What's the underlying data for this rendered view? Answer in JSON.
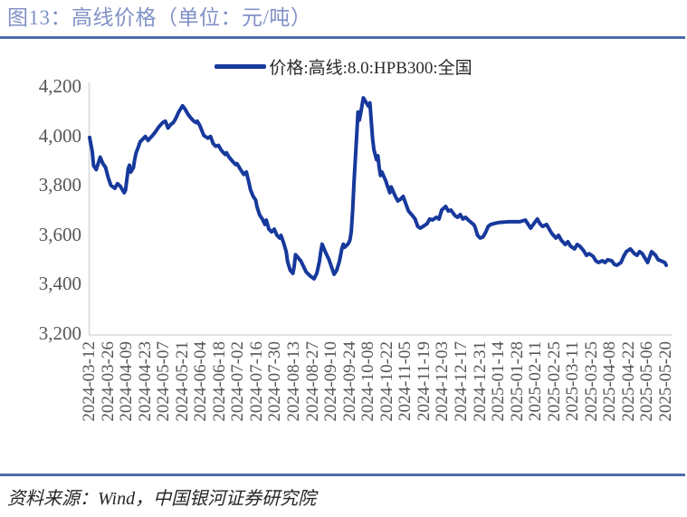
{
  "header": {
    "title": "图13：高线价格（单位：元/吨）"
  },
  "footer": {
    "source": "资料来源：Wind，中国银河证券研究院"
  },
  "colors": {
    "line": "#17399c",
    "title_text": "#8091c7",
    "divider": "#4d6aa8",
    "axis_text": "#555555",
    "legend_text": "#2b2b2b",
    "source_text": "#262626",
    "spine": "#d9d9d9"
  },
  "chart_data": {
    "type": "line",
    "title": "高线价格（单位：元/吨）",
    "xlabel": "",
    "ylabel": "",
    "grid": false,
    "legend_position": "top-center",
    "legend": [
      "价格:高线:8.0:HPB300:全国"
    ],
    "ylim": [
      3200,
      4200
    ],
    "x_range": [
      "2024-03-12",
      "2025-05-20"
    ],
    "y_ticks": [
      {
        "value": 4200,
        "label": "4,200"
      },
      {
        "value": 4000,
        "label": "4,000"
      },
      {
        "value": 3800,
        "label": "3,800"
      },
      {
        "value": 3600,
        "label": "3,600"
      },
      {
        "value": 3400,
        "label": "3,400"
      },
      {
        "value": 3200,
        "label": "3,200"
      }
    ],
    "x_ticks": [
      "2024-03-12",
      "2024-03-26",
      "2024-04-09",
      "2024-04-23",
      "2024-05-07",
      "2024-05-21",
      "2024-06-04",
      "2024-06-18",
      "2024-07-02",
      "2024-07-16",
      "2024-07-30",
      "2024-08-13",
      "2024-08-27",
      "2024-09-10",
      "2024-09-24",
      "2024-10-08",
      "2024-10-22",
      "2024-11-05",
      "2024-11-19",
      "2024-12-03",
      "2024-12-17",
      "2024-12-31",
      "2025-01-14",
      "2025-01-28",
      "2025-02-11",
      "2025-02-25",
      "2025-03-11",
      "2025-03-25",
      "2025-04-08",
      "2025-04-22",
      "2025-05-06",
      "2025-05-20"
    ],
    "series": [
      {
        "name": "价格:高线:8.0:HPB300:全国",
        "points": [
          [
            "2024-03-12",
            3992
          ],
          [
            "2024-03-14",
            3935
          ],
          [
            "2024-03-15",
            3878
          ],
          [
            "2024-03-17",
            3862
          ],
          [
            "2024-03-19",
            3896
          ],
          [
            "2024-03-20",
            3912
          ],
          [
            "2024-03-22",
            3886
          ],
          [
            "2024-03-24",
            3871
          ],
          [
            "2024-03-26",
            3830
          ],
          [
            "2024-03-28",
            3798
          ],
          [
            "2024-03-31",
            3786
          ],
          [
            "2024-04-02",
            3805
          ],
          [
            "2024-04-04",
            3795
          ],
          [
            "2024-04-07",
            3768
          ],
          [
            "2024-04-08",
            3778
          ],
          [
            "2024-04-09",
            3820
          ],
          [
            "2024-04-10",
            3865
          ],
          [
            "2024-04-11",
            3880
          ],
          [
            "2024-04-12",
            3852
          ],
          [
            "2024-04-14",
            3870
          ],
          [
            "2024-04-15",
            3905
          ],
          [
            "2024-04-16",
            3930
          ],
          [
            "2024-04-18",
            3958
          ],
          [
            "2024-04-19",
            3974
          ],
          [
            "2024-04-21",
            3985
          ],
          [
            "2024-04-23",
            3996
          ],
          [
            "2024-04-25",
            3980
          ],
          [
            "2024-04-27",
            3992
          ],
          [
            "2024-04-29",
            4004
          ],
          [
            "2024-05-01",
            4018
          ],
          [
            "2024-05-03",
            4034
          ],
          [
            "2024-05-06",
            4052
          ],
          [
            "2024-05-08",
            4058
          ],
          [
            "2024-05-10",
            4030
          ],
          [
            "2024-05-12",
            4044
          ],
          [
            "2024-05-14",
            4052
          ],
          [
            "2024-05-16",
            4070
          ],
          [
            "2024-05-18",
            4094
          ],
          [
            "2024-05-20",
            4112
          ],
          [
            "2024-05-21",
            4120
          ],
          [
            "2024-05-23",
            4105
          ],
          [
            "2024-05-25",
            4086
          ],
          [
            "2024-05-27",
            4072
          ],
          [
            "2024-05-29",
            4060
          ],
          [
            "2024-05-31",
            4052
          ],
          [
            "2024-06-01",
            4058
          ],
          [
            "2024-06-03",
            4040
          ],
          [
            "2024-06-04",
            4026
          ],
          [
            "2024-06-06",
            4000
          ],
          [
            "2024-06-09",
            3989
          ],
          [
            "2024-06-11",
            3996
          ],
          [
            "2024-06-13",
            3967
          ],
          [
            "2024-06-15",
            3956
          ],
          [
            "2024-06-17",
            3960
          ],
          [
            "2024-06-19",
            3941
          ],
          [
            "2024-06-22",
            3923
          ],
          [
            "2024-06-23",
            3930
          ],
          [
            "2024-06-25",
            3912
          ],
          [
            "2024-06-28",
            3893
          ],
          [
            "2024-06-30",
            3882
          ],
          [
            "2024-07-01",
            3886
          ],
          [
            "2024-07-03",
            3867
          ],
          [
            "2024-07-06",
            3842
          ],
          [
            "2024-07-08",
            3852
          ],
          [
            "2024-07-10",
            3808
          ],
          [
            "2024-07-11",
            3782
          ],
          [
            "2024-07-13",
            3755
          ],
          [
            "2024-07-15",
            3738
          ],
          [
            "2024-07-16",
            3712
          ],
          [
            "2024-07-18",
            3678
          ],
          [
            "2024-07-20",
            3662
          ],
          [
            "2024-07-22",
            3640
          ],
          [
            "2024-07-23",
            3658
          ],
          [
            "2024-07-25",
            3621
          ],
          [
            "2024-07-27",
            3610
          ],
          [
            "2024-07-29",
            3621
          ],
          [
            "2024-07-31",
            3596
          ],
          [
            "2024-08-02",
            3585
          ],
          [
            "2024-08-03",
            3596
          ],
          [
            "2024-08-05",
            3566
          ],
          [
            "2024-08-07",
            3530
          ],
          [
            "2024-08-08",
            3490
          ],
          [
            "2024-08-10",
            3455
          ],
          [
            "2024-08-12",
            3442
          ],
          [
            "2024-08-13",
            3470
          ],
          [
            "2024-08-14",
            3518
          ],
          [
            "2024-08-16",
            3505
          ],
          [
            "2024-08-18",
            3492
          ],
          [
            "2024-08-20",
            3470
          ],
          [
            "2024-08-22",
            3448
          ],
          [
            "2024-08-25",
            3432
          ],
          [
            "2024-08-28",
            3420
          ],
          [
            "2024-08-30",
            3442
          ],
          [
            "2024-09-01",
            3490
          ],
          [
            "2024-09-02",
            3530
          ],
          [
            "2024-09-03",
            3560
          ],
          [
            "2024-09-04",
            3548
          ],
          [
            "2024-09-06",
            3522
          ],
          [
            "2024-09-08",
            3500
          ],
          [
            "2024-09-10",
            3470
          ],
          [
            "2024-09-12",
            3438
          ],
          [
            "2024-09-14",
            3455
          ],
          [
            "2024-09-16",
            3490
          ],
          [
            "2024-09-18",
            3545
          ],
          [
            "2024-09-19",
            3560
          ],
          [
            "2024-09-20",
            3548
          ],
          [
            "2024-09-22",
            3558
          ],
          [
            "2024-09-23",
            3565
          ],
          [
            "2024-09-24",
            3578
          ],
          [
            "2024-09-25",
            3612
          ],
          [
            "2024-09-26",
            3695
          ],
          [
            "2024-09-27",
            3810
          ],
          [
            "2024-09-29",
            3995
          ],
          [
            "2024-09-30",
            4095
          ],
          [
            "2024-10-01",
            4062
          ],
          [
            "2024-10-02",
            4088
          ],
          [
            "2024-10-04",
            4152
          ],
          [
            "2024-10-08",
            4118
          ],
          [
            "2024-10-09",
            4132
          ],
          [
            "2024-10-10",
            4058
          ],
          [
            "2024-10-11",
            3988
          ],
          [
            "2024-10-12",
            3942
          ],
          [
            "2024-10-14",
            3902
          ],
          [
            "2024-10-15",
            3918
          ],
          [
            "2024-10-16",
            3868
          ],
          [
            "2024-10-17",
            3838
          ],
          [
            "2024-10-18",
            3852
          ],
          [
            "2024-10-21",
            3815
          ],
          [
            "2024-10-22",
            3798
          ],
          [
            "2024-10-24",
            3768
          ],
          [
            "2024-10-25",
            3792
          ],
          [
            "2024-10-28",
            3755
          ],
          [
            "2024-10-30",
            3735
          ],
          [
            "2024-11-01",
            3742
          ],
          [
            "2024-11-03",
            3753
          ],
          [
            "2024-11-05",
            3724
          ],
          [
            "2024-11-07",
            3694
          ],
          [
            "2024-11-10",
            3676
          ],
          [
            "2024-11-12",
            3662
          ],
          [
            "2024-11-14",
            3632
          ],
          [
            "2024-11-16",
            3625
          ],
          [
            "2024-11-18",
            3632
          ],
          [
            "2024-11-21",
            3643
          ],
          [
            "2024-11-23",
            3662
          ],
          [
            "2024-11-25",
            3658
          ],
          [
            "2024-11-28",
            3669
          ],
          [
            "2024-11-30",
            3662
          ],
          [
            "2024-12-02",
            3698
          ],
          [
            "2024-12-05",
            3713
          ],
          [
            "2024-12-07",
            3694
          ],
          [
            "2024-12-09",
            3698
          ],
          [
            "2024-12-12",
            3676
          ],
          [
            "2024-12-14",
            3669
          ],
          [
            "2024-12-16",
            3680
          ],
          [
            "2024-12-18",
            3662
          ],
          [
            "2024-12-20",
            3669
          ],
          [
            "2024-12-22",
            3658
          ],
          [
            "2024-12-26",
            3640
          ],
          [
            "2024-12-27",
            3632
          ],
          [
            "2024-12-29",
            3596
          ],
          [
            "2024-12-31",
            3585
          ],
          [
            "2025-01-02",
            3589
          ],
          [
            "2025-01-04",
            3607
          ],
          [
            "2025-01-06",
            3632
          ],
          [
            "2025-01-08",
            3640
          ],
          [
            "2025-01-10",
            3643
          ],
          [
            "2025-01-14",
            3648
          ],
          [
            "2025-01-18",
            3650
          ],
          [
            "2025-01-22",
            3651
          ],
          [
            "2025-01-26",
            3651
          ],
          [
            "2025-01-30",
            3651
          ],
          [
            "2025-02-03",
            3658
          ],
          [
            "2025-02-07",
            3625
          ],
          [
            "2025-02-09",
            3640
          ],
          [
            "2025-02-12",
            3662
          ],
          [
            "2025-02-14",
            3643
          ],
          [
            "2025-02-16",
            3632
          ],
          [
            "2025-02-19",
            3640
          ],
          [
            "2025-02-21",
            3621
          ],
          [
            "2025-02-23",
            3603
          ],
          [
            "2025-02-26",
            3585
          ],
          [
            "2025-02-28",
            3596
          ],
          [
            "2025-03-02",
            3577
          ],
          [
            "2025-03-05",
            3559
          ],
          [
            "2025-03-07",
            3570
          ],
          [
            "2025-03-09",
            3552
          ],
          [
            "2025-03-12",
            3541
          ],
          [
            "2025-03-14",
            3559
          ],
          [
            "2025-03-16",
            3552
          ],
          [
            "2025-03-19",
            3533
          ],
          [
            "2025-03-21",
            3515
          ],
          [
            "2025-03-23",
            3522
          ],
          [
            "2025-03-26",
            3511
          ],
          [
            "2025-03-28",
            3493
          ],
          [
            "2025-03-30",
            3486
          ],
          [
            "2025-04-02",
            3493
          ],
          [
            "2025-04-04",
            3486
          ],
          [
            "2025-04-06",
            3497
          ],
          [
            "2025-04-09",
            3493
          ],
          [
            "2025-04-11",
            3478
          ],
          [
            "2025-04-13",
            3475
          ],
          [
            "2025-04-16",
            3486
          ],
          [
            "2025-04-18",
            3511
          ],
          [
            "2025-04-20",
            3530
          ],
          [
            "2025-04-23",
            3541
          ],
          [
            "2025-04-26",
            3522
          ],
          [
            "2025-04-28",
            3515
          ],
          [
            "2025-04-30",
            3530
          ],
          [
            "2025-05-02",
            3522
          ],
          [
            "2025-05-04",
            3504
          ],
          [
            "2025-05-06",
            3486
          ],
          [
            "2025-05-09",
            3530
          ],
          [
            "2025-05-12",
            3515
          ],
          [
            "2025-05-14",
            3497
          ],
          [
            "2025-05-16",
            3493
          ],
          [
            "2025-05-19",
            3486
          ],
          [
            "2025-05-20",
            3475
          ]
        ]
      }
    ]
  }
}
